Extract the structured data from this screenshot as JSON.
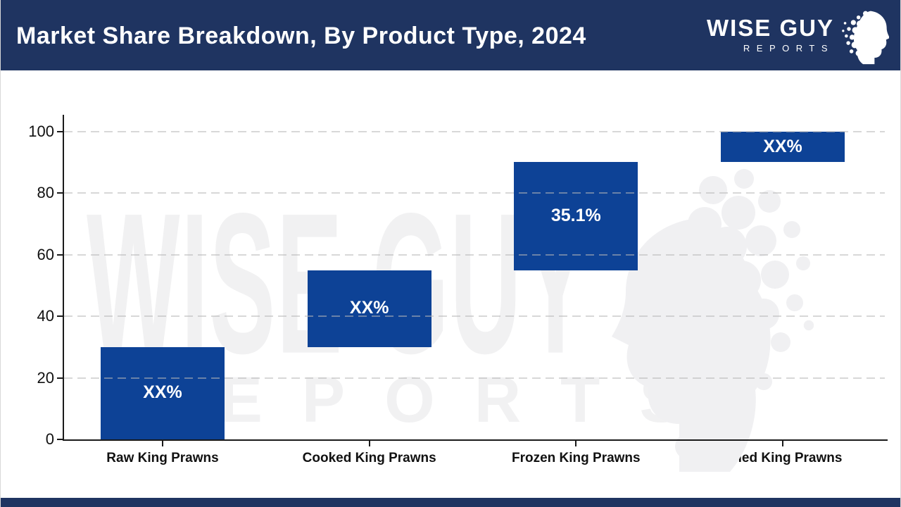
{
  "header": {
    "title": "Market Share Breakdown, By Product Type, 2024",
    "bg_color": "#1f3461",
    "logo": {
      "line1": "WISE GUY",
      "line2": "REPORTS"
    }
  },
  "watermark": {
    "line1": "WISE GUY",
    "line2": "REPORTS"
  },
  "chart_data": {
    "type": "bar",
    "subtype": "waterfall",
    "title": "Market Share Breakdown, By Product Type, 2024",
    "categories": [
      "Raw King Prawns",
      "Cooked King Prawns",
      "Frozen King Prawns",
      "Dried King Prawns"
    ],
    "series": [
      {
        "name": "Market Share",
        "segments": [
          {
            "category": "Raw King Prawns",
            "start": 0,
            "end": 30,
            "label": "XX%"
          },
          {
            "category": "Cooked King Prawns",
            "start": 30,
            "end": 55,
            "label": "XX%"
          },
          {
            "category": "Frozen King Prawns",
            "start": 55,
            "end": 90.1,
            "label": "35.1%"
          },
          {
            "category": "Dried King Prawns",
            "start": 90.1,
            "end": 100,
            "label": "XX%"
          }
        ]
      }
    ],
    "ylim": [
      0,
      105
    ],
    "yticks": [
      0,
      20,
      40,
      60,
      80,
      100
    ],
    "xlabel": "",
    "ylabel": "",
    "grid": "horizontal-dashed",
    "legend": "none",
    "bar_color": "#0d4296",
    "bar_label_color": "#ffffff"
  }
}
